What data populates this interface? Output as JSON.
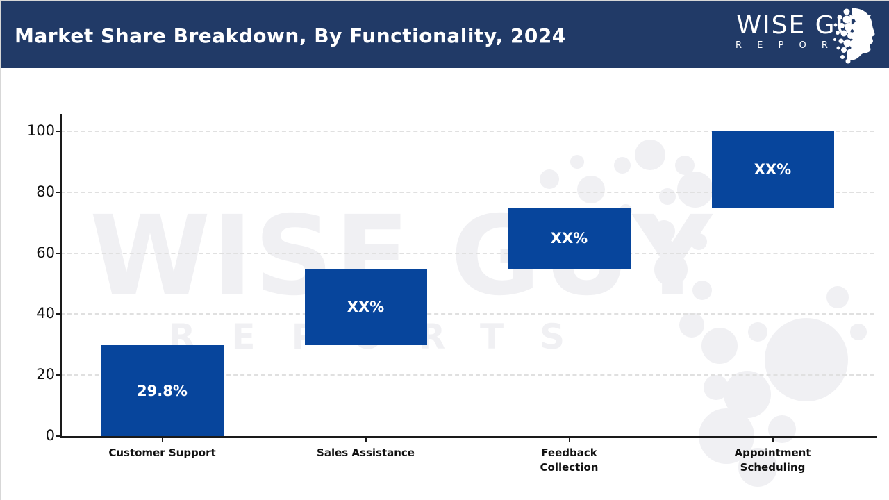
{
  "header": {
    "title": "Market Share Breakdown, By Functionality, 2024",
    "logo": {
      "main": "WISE GUY",
      "sub": "R E P O R T S"
    }
  },
  "watermark": {
    "main": "WISE GUY",
    "sub": "REPORTS"
  },
  "colors": {
    "header_bg": "#213a67",
    "bar": "#07459c",
    "title_text": "#ffffff",
    "value_label_text": "#ffffff",
    "axis": "#1a1a1a",
    "gridline": "#e0e0e0",
    "watermark": "#f0f0f3",
    "tick_label": "#111111"
  },
  "chart_data": {
    "type": "bar",
    "subtype": "waterfall",
    "title": "Market Share Breakdown, By Functionality, 2024",
    "categories": [
      "Customer Support",
      "Sales Assistance",
      "Feedback\nCollection",
      "Appointment\nScheduling"
    ],
    "segments": [
      {
        "category": "Customer Support",
        "start": 0,
        "end": 29.8,
        "value": 29.8,
        "label": "29.8%"
      },
      {
        "category": "Sales Assistance",
        "start": 29.8,
        "end": 55,
        "value": 25.2,
        "label": "XX%"
      },
      {
        "category": "Feedback\nCollection",
        "start": 55,
        "end": 75,
        "value": 20,
        "label": "XX%"
      },
      {
        "category": "Appointment\nScheduling",
        "start": 75,
        "end": 100,
        "value": 25,
        "label": "XX%"
      }
    ],
    "xlabel": "",
    "ylabel": "",
    "ylim": [
      0,
      100
    ],
    "yticks": [
      0,
      20,
      40,
      60,
      80,
      100
    ],
    "grid": "dashed-horizontal",
    "legend": "none",
    "bar_color": "#07459c"
  }
}
